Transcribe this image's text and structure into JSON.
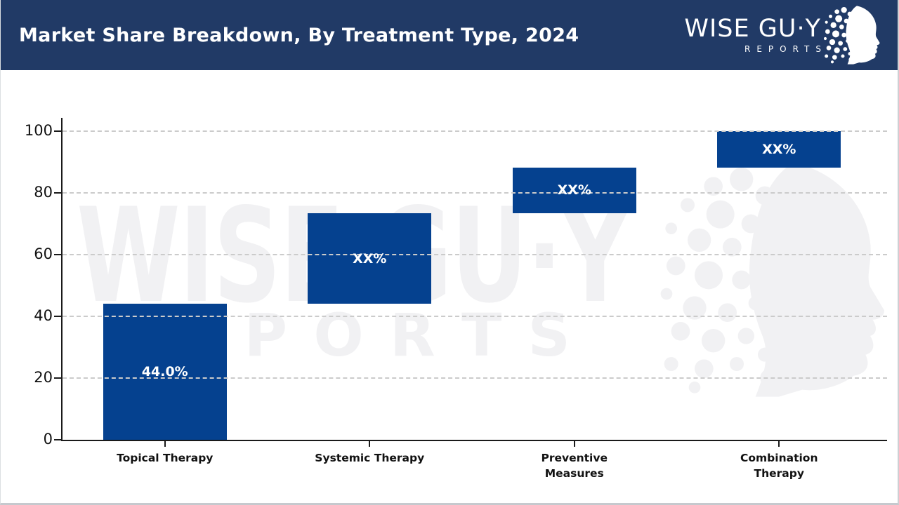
{
  "header": {
    "title": "Market Share Breakdown, By Treatment Type, 2024",
    "logo": {
      "name_line": "WISE GU·Y",
      "sub_line": "REPORTS"
    }
  },
  "watermark": {
    "line1": "WISE GU·Y",
    "line2": "R E P O R T S"
  },
  "chart_data": {
    "type": "bar",
    "subtype": "waterfall",
    "title": "Market Share Breakdown, By Treatment Type, 2024",
    "categories": [
      "Topical Therapy",
      "Systemic Therapy",
      "Preventive\nMeasures",
      "Combination\nTherapy"
    ],
    "segments": [
      {
        "start": 0,
        "end": 44.0
      },
      {
        "start": 44.0,
        "end": 73.4
      },
      {
        "start": 73.4,
        "end": 88.2
      },
      {
        "start": 88.2,
        "end": 100.0
      }
    ],
    "bar_labels": [
      "44.0%",
      "XX%",
      "XX%",
      "XX%"
    ],
    "yticks": [
      0,
      20,
      40,
      60,
      80,
      100
    ],
    "ylim": [
      0,
      104
    ],
    "xlabel": "",
    "ylabel": "",
    "grid": "horizontal-dashed",
    "legend": "none",
    "bar_color": "#05418f",
    "bar_label_color": "#ffffff",
    "axis_color": "#1a1a1a",
    "grid_color": "#cbcbcb"
  }
}
